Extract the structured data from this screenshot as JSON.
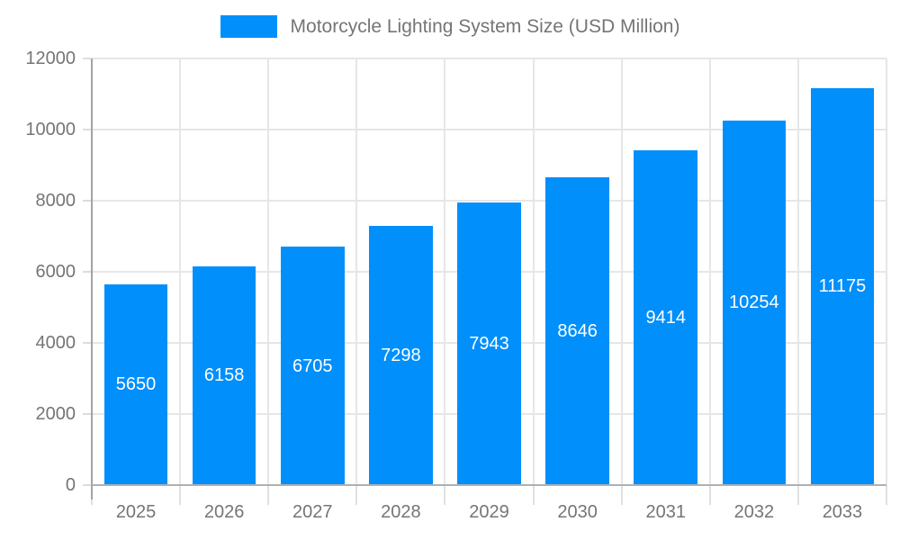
{
  "colors": {
    "bar": "#008FFB",
    "axis_text": "#757575",
    "gridline": "#e6e6e6",
    "axis_line": "#b0b0b0",
    "value_label": "#ffffff",
    "background": "#ffffff"
  },
  "chart_data": {
    "type": "bar",
    "title": "Motorcycle Lighting System Size (USD Million)",
    "legend_label": "Motorcycle Lighting System Size (USD Million)",
    "categories": [
      "2025",
      "2026",
      "2027",
      "2028",
      "2029",
      "2030",
      "2031",
      "2032",
      "2033"
    ],
    "values": [
      5650,
      6158,
      6705,
      7298,
      7943,
      8646,
      9414,
      10254,
      11175
    ],
    "xlabel": "",
    "ylabel": "",
    "ylim": [
      0,
      12000
    ],
    "ytick_step": 2000,
    "ytick_labels": [
      "0",
      "2000",
      "4000",
      "6000",
      "8000",
      "10000",
      "12000"
    ],
    "grid": true,
    "legend_position": "top-center",
    "value_labels_shown": true
  }
}
